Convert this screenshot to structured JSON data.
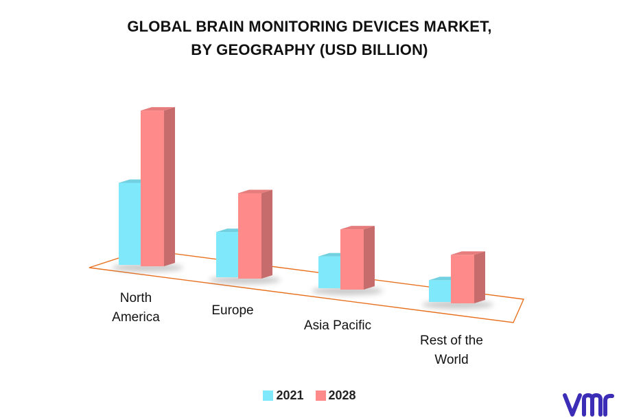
{
  "colors": {
    "2021": "#7FE8FA",
    "2028": "#FF8A8A",
    "floor": "#E8701E",
    "logo": "#3B2DB5"
  },
  "chart_data": {
    "type": "bar",
    "title_line1": "GLOBAL BRAIN MONITORING DEVICES MARKET,",
    "title_line2": "BY GEOGRAPHY (USD BILLION)",
    "xlabel": "",
    "ylabel": "",
    "categories": [
      {
        "line1": "North",
        "line2": "America"
      },
      {
        "line1": "Europe",
        "line2": ""
      },
      {
        "line1": "Asia Pacific",
        "line2": ""
      },
      {
        "line1": "Rest of the",
        "line2": "World"
      }
    ],
    "series": [
      {
        "name": "2021",
        "color": "#7FE8FA",
        "values": [
          4.9,
          2.7,
          1.9,
          1.3
        ]
      },
      {
        "name": "2028",
        "color": "#FF8A8A",
        "values": [
          9.3,
          5.1,
          3.6,
          2.9
        ]
      }
    ],
    "legend_position": "bottom",
    "grid": false,
    "style": "3d"
  },
  "legend": {
    "item1": "2021",
    "item2": "2028"
  }
}
